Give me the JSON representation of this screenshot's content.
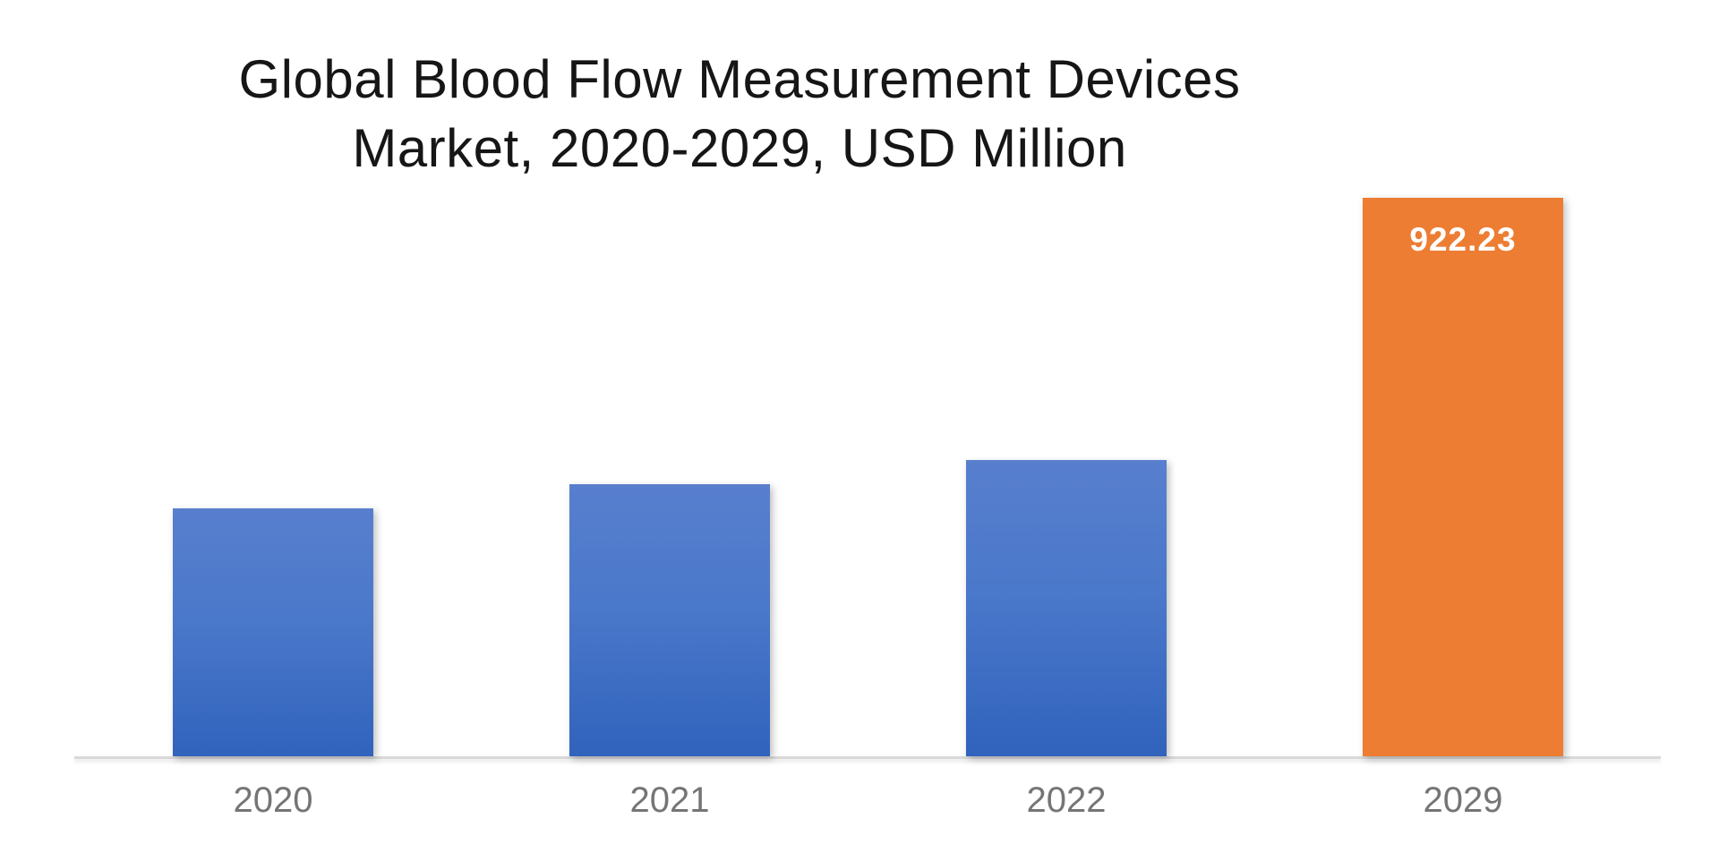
{
  "page": {
    "background": "#ffffff"
  },
  "title": {
    "line1": "Global Blood Flow Measurement Devices",
    "line2": "Market, 2020-2029, USD Million"
  },
  "chart_data": {
    "type": "bar",
    "title": "Global Blood Flow Measurement Devices Market, 2020-2029, USD Million",
    "unit": "USD Million",
    "categories": [
      "2020",
      "2021",
      "2022",
      "2029"
    ],
    "values": [
      410,
      449,
      489,
      922.23
    ],
    "value_labels": [
      "",
      "",
      "",
      "922.23"
    ],
    "bar_colors": [
      "#4a78ca",
      "#4a78ca",
      "#4a78ca",
      "#ed7d33"
    ],
    "xlabel": "",
    "ylabel": "",
    "ylim": [
      0,
      950
    ],
    "grid": false,
    "legend": false,
    "axis_line_color": "#d9d9d9",
    "xtick_color": "#757575",
    "data_label_color": "#ffffff",
    "title_color": "#161616"
  }
}
